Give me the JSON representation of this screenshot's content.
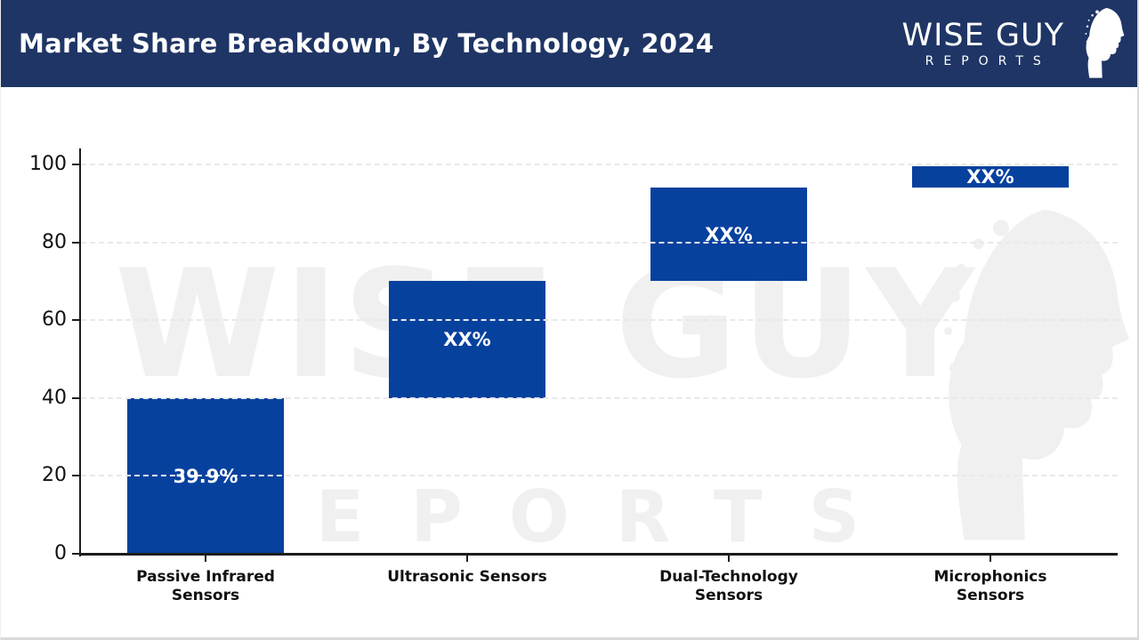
{
  "header": {
    "title": "Market Share Breakdown, By Technology, 2024",
    "logo": {
      "brand_line1": "WISE GUY",
      "brand_line2": "REPORTS"
    }
  },
  "watermark": {
    "line1": "WISE GUY",
    "line2": "REPORTS"
  },
  "colors": {
    "header_bg": "#1f3565",
    "header_text": "#ffffff",
    "bar": "#07419e",
    "axis": "#1c1c1c",
    "tick_text": "#111111",
    "grid": "#e9e9e9",
    "watermark": "#f0f0f0",
    "bar_label_text": "#ffffff",
    "page_border": "#d9d9d9"
  },
  "chart_data": {
    "type": "bar",
    "subtype": "waterfall",
    "title": "Market Share Breakdown, By Technology, 2024",
    "xlabel": "",
    "ylabel": "",
    "ylim": [
      0,
      104
    ],
    "yticks": [
      0,
      20,
      40,
      60,
      80,
      100
    ],
    "grid": {
      "horizontal": true,
      "style": "dashed"
    },
    "legend": null,
    "bars": [
      {
        "category": "Passive Infrared Sensors",
        "category_lines": [
          "Passive Infrared",
          "Sensors"
        ],
        "start": 0,
        "end": 39.9,
        "value": 39.9,
        "value_label": "39.9%"
      },
      {
        "category": "Ultrasonic Sensors",
        "category_lines": [
          "Ultrasonic Sensors"
        ],
        "start": 40,
        "end": 70,
        "value": 30,
        "value_label": "XX%"
      },
      {
        "category": "Dual-Technology Sensors",
        "category_lines": [
          "Dual-Technology",
          "Sensors"
        ],
        "start": 70,
        "end": 94,
        "value": 24,
        "value_label": "XX%"
      },
      {
        "category": "Microphonics Sensors",
        "category_lines": [
          "Microphonics",
          "Sensors"
        ],
        "start": 94,
        "end": 99.5,
        "value": 5.5,
        "value_label": "XX%"
      }
    ]
  }
}
